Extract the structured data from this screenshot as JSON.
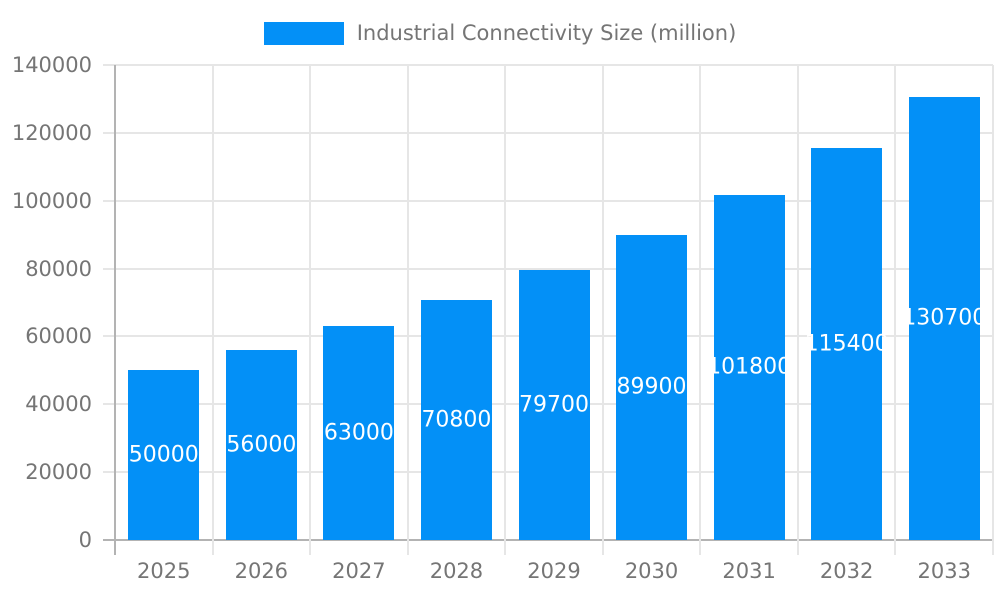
{
  "chart_data": {
    "type": "bar",
    "title": "Industrial Connectivity Size (million)",
    "legend_position": "top",
    "categories": [
      "2025",
      "2026",
      "2027",
      "2028",
      "2029",
      "2030",
      "2031",
      "2032",
      "2033"
    ],
    "values": [
      50000,
      56000,
      63000,
      70800,
      79700,
      89900,
      101800,
      115400,
      130700
    ],
    "xlabel": "",
    "ylabel": "",
    "ylim": [
      0,
      140000
    ],
    "ytick_step": 20000,
    "ytick_labels": [
      "0",
      "20000",
      "40000",
      "60000",
      "80000",
      "100000",
      "120000",
      "140000"
    ],
    "grid": true,
    "value_labels_shown": true,
    "colors": {
      "bar": "#0390f7",
      "value_text": "#ffffff",
      "axis_text": "#757575",
      "gridline": "#e6e6e6",
      "axis_line": "#b3b3b3",
      "background": "#ffffff"
    }
  }
}
